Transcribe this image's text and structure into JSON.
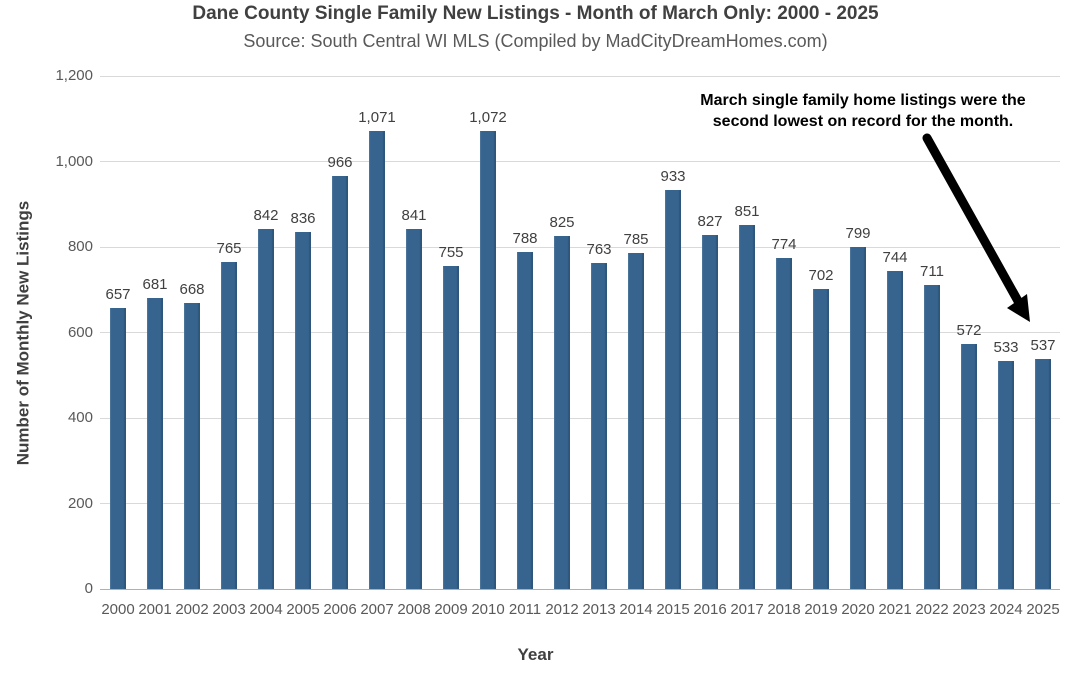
{
  "header": {
    "title": "Dane County Single Family New Listings - Month of March Only: 2000 - 2025",
    "subtitle": "Source: South Central WI MLS (Compiled by MadCityDreamHomes.com)"
  },
  "chart_data": {
    "type": "bar",
    "title": "Dane County Single Family New Listings - Month of March Only: 2000 - 2025",
    "subtitle": "Source: South Central WI MLS (Compiled by MadCityDreamHomes.com)",
    "xlabel": "Year",
    "ylabel": "Number of Monthly New Listings",
    "ylim": [
      0,
      1200
    ],
    "grid": true,
    "legend_position": "none",
    "ytick_values": [
      0,
      200,
      400,
      600,
      800,
      1000,
      1200
    ],
    "ytick_labels": [
      "0",
      "200",
      "400",
      "600",
      "800",
      "1,000",
      "1,200"
    ],
    "categories": [
      "2000",
      "2001",
      "2002",
      "2003",
      "2004",
      "2005",
      "2006",
      "2007",
      "2008",
      "2009",
      "2010",
      "2011",
      "2012",
      "2013",
      "2014",
      "2015",
      "2016",
      "2017",
      "2018",
      "2019",
      "2020",
      "2021",
      "2022",
      "2023",
      "2024",
      "2025"
    ],
    "values": [
      657,
      681,
      668,
      765,
      842,
      836,
      966,
      1071,
      841,
      755,
      1072,
      788,
      825,
      763,
      785,
      933,
      827,
      851,
      774,
      702,
      799,
      744,
      711,
      572,
      533,
      537
    ],
    "value_labels": [
      "657",
      "681",
      "668",
      "765",
      "842",
      "836",
      "966",
      "1,071",
      "841",
      "755",
      "1,072",
      "788",
      "825",
      "763",
      "785",
      "933",
      "827",
      "851",
      "774",
      "702",
      "799",
      "744",
      "711",
      "572",
      "533",
      "537"
    ],
    "colors": {
      "bar": "#36648f",
      "gridline": "#d9d9d9",
      "axis_line": "#b0b0b0",
      "title_text": "#404040",
      "tick_text": "#595959",
      "annotation_text": "#000000",
      "arrow": "#000000"
    },
    "annotation": {
      "lines": [
        "March single family home listings were the",
        "second lowest on record for the month."
      ]
    }
  }
}
